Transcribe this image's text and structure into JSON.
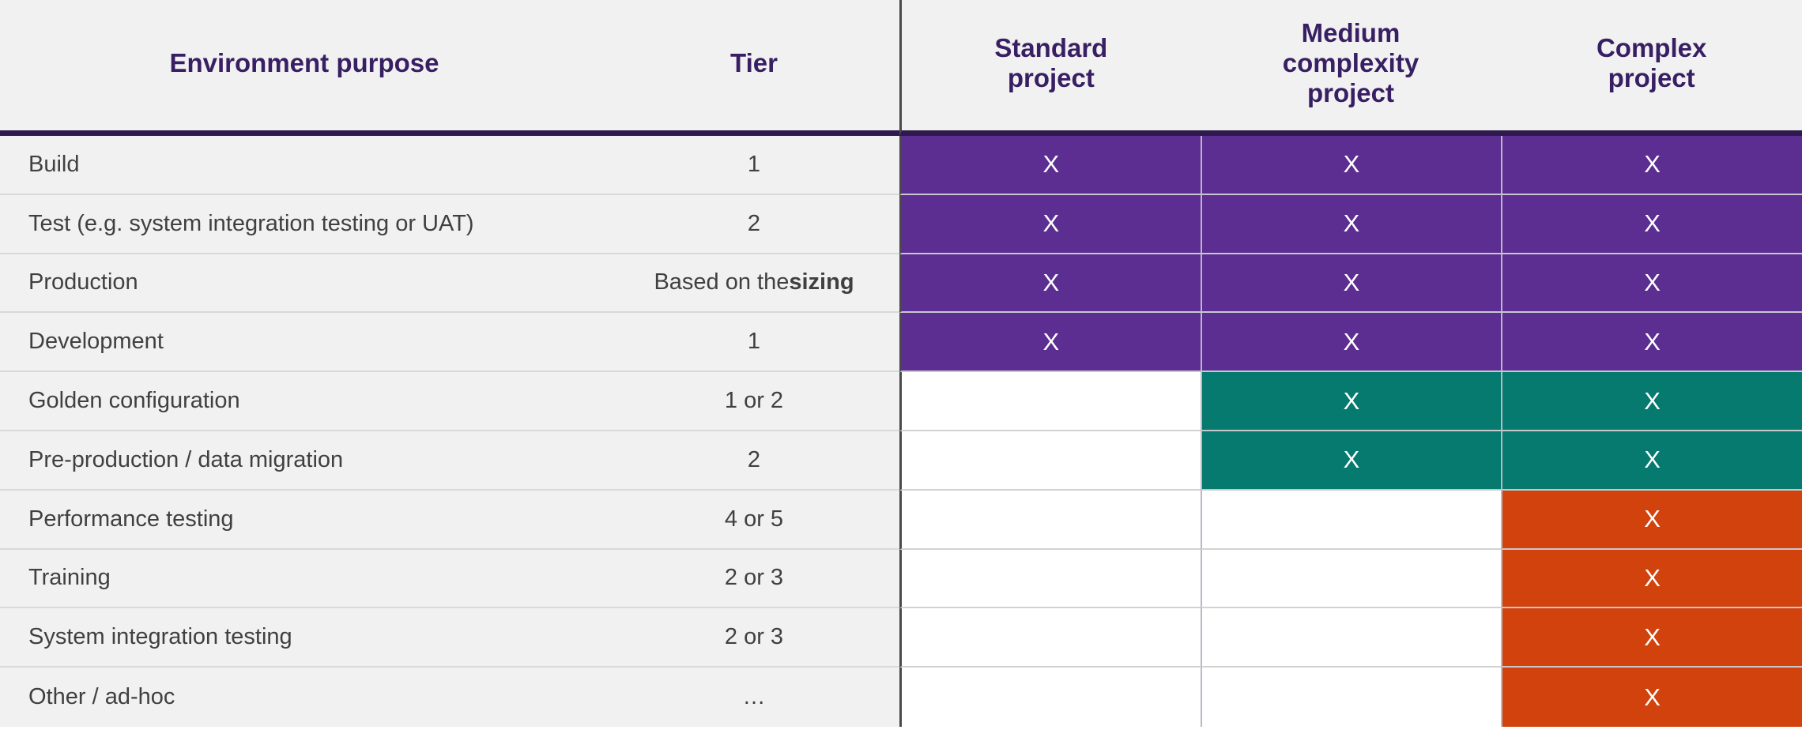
{
  "colors": {
    "purple": "#5C2E91",
    "teal": "#067A6E",
    "orange": "#D2420D",
    "header-line": "#2E1A4D",
    "header-text": "#381F63",
    "body-text": "#404040",
    "left-bg": "#F1F1F1",
    "divider-dark": "#4A4A4A",
    "mark-text": "#FFFFFF"
  },
  "header": {
    "purpose": "Environment purpose",
    "tier": "Tier",
    "projects": [
      "Standard\nproject",
      "Medium\ncomplexity\nproject",
      "Complex\nproject"
    ]
  },
  "rows": [
    {
      "purpose": "Build",
      "tier": "1",
      "tier_bold": "",
      "cells": [
        "purple",
        "purple",
        "purple"
      ],
      "marks": [
        "X",
        "X",
        "X"
      ]
    },
    {
      "purpose": "Test (e.g. system integration testing or UAT)",
      "tier": "2",
      "tier_bold": "",
      "cells": [
        "purple",
        "purple",
        "purple"
      ],
      "marks": [
        "X",
        "X",
        "X"
      ]
    },
    {
      "purpose": "Production",
      "tier": "Based on the ",
      "tier_bold": "sizing",
      "cells": [
        "purple",
        "purple",
        "purple"
      ],
      "marks": [
        "X",
        "X",
        "X"
      ]
    },
    {
      "purpose": "Development",
      "tier": "1",
      "tier_bold": "",
      "cells": [
        "purple",
        "purple",
        "purple"
      ],
      "marks": [
        "X",
        "X",
        "X"
      ]
    },
    {
      "purpose": "Golden configuration",
      "tier": "1 or 2",
      "tier_bold": "",
      "cells": [
        "none",
        "teal",
        "teal"
      ],
      "marks": [
        "",
        "X",
        "X"
      ]
    },
    {
      "purpose": "Pre-production / data migration",
      "tier": "2",
      "tier_bold": "",
      "cells": [
        "none",
        "teal",
        "teal"
      ],
      "marks": [
        "",
        "X",
        "X"
      ]
    },
    {
      "purpose": "Performance testing",
      "tier": "4 or 5",
      "tier_bold": "",
      "cells": [
        "none",
        "none",
        "orange"
      ],
      "marks": [
        "",
        "",
        "X"
      ]
    },
    {
      "purpose": "Training",
      "tier": "2 or 3",
      "tier_bold": "",
      "cells": [
        "none",
        "none",
        "orange"
      ],
      "marks": [
        "",
        "",
        "X"
      ]
    },
    {
      "purpose": "System integration testing",
      "tier": "2 or 3",
      "tier_bold": "",
      "cells": [
        "none",
        "none",
        "orange"
      ],
      "marks": [
        "",
        "",
        "X"
      ]
    },
    {
      "purpose": "Other / ad-hoc",
      "tier": "…",
      "tier_bold": "",
      "cells": [
        "none",
        "none",
        "orange"
      ],
      "marks": [
        "",
        "",
        "X"
      ]
    }
  ]
}
